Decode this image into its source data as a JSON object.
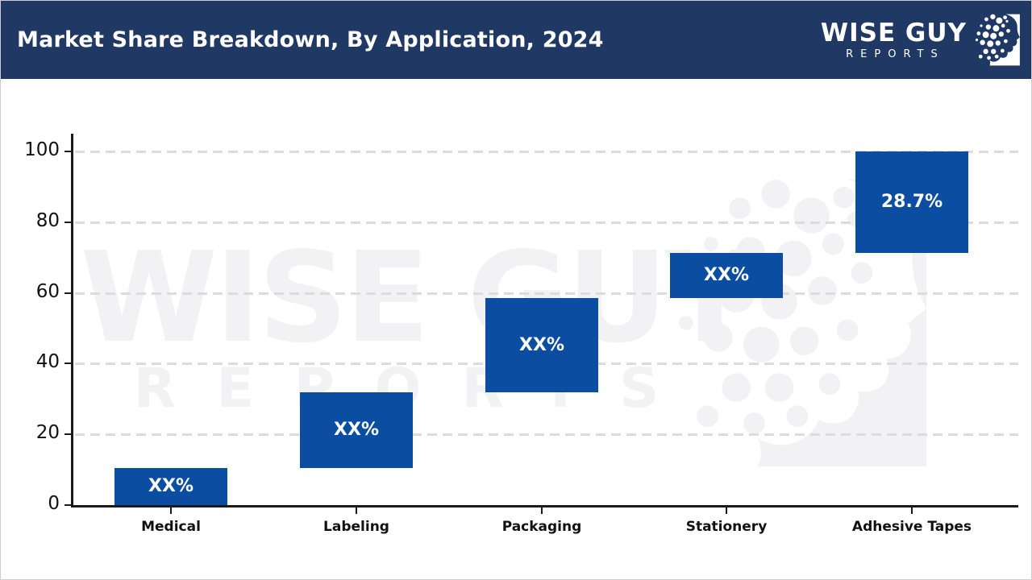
{
  "header": {
    "title": "Market Share Breakdown, By Application, 2024",
    "brand": {
      "name": "WISE GUY",
      "sub": "REPORTS"
    }
  },
  "watermark": {
    "line1": "WISE GUY",
    "line2": "REPORTS"
  },
  "chart_data": {
    "type": "bar",
    "subtype": "floating-segment (waterfall-style market share breakdown)",
    "title": "Market Share Breakdown, By Application, 2024",
    "categories": [
      "Medical",
      "Labeling",
      "Packaging",
      "Stationery",
      "Adhesive Tapes"
    ],
    "series": [
      {
        "name": "Market share (%)",
        "segments": [
          {
            "category": "Medical",
            "start": 0,
            "end": 10.5,
            "value": 10.5,
            "label": "XX%"
          },
          {
            "category": "Labeling",
            "start": 10.5,
            "end": 32.0,
            "value": 21.5,
            "label": "XX%"
          },
          {
            "category": "Packaging",
            "start": 32.0,
            "end": 58.6,
            "value": 26.6,
            "label": "XX%"
          },
          {
            "category": "Stationery",
            "start": 58.6,
            "end": 71.3,
            "value": 12.7,
            "label": "XX%"
          },
          {
            "category": "Adhesive Tapes",
            "start": 71.3,
            "end": 100,
            "value": 28.7,
            "label": "28.7%"
          }
        ]
      }
    ],
    "xlabel": "",
    "ylabel": "",
    "ylim": [
      0,
      105
    ],
    "yticks": [
      0,
      20,
      40,
      60,
      80,
      100
    ],
    "grid": "horizontal-dashed",
    "legend": "none",
    "bar_color": "#0b4da0",
    "bar_label_color": "#ffffff",
    "header_color": "#1f3864",
    "axis_color": "#1a1a1a",
    "grid_color": "#dcdcdc",
    "watermark_color": "#f2f2f4"
  }
}
